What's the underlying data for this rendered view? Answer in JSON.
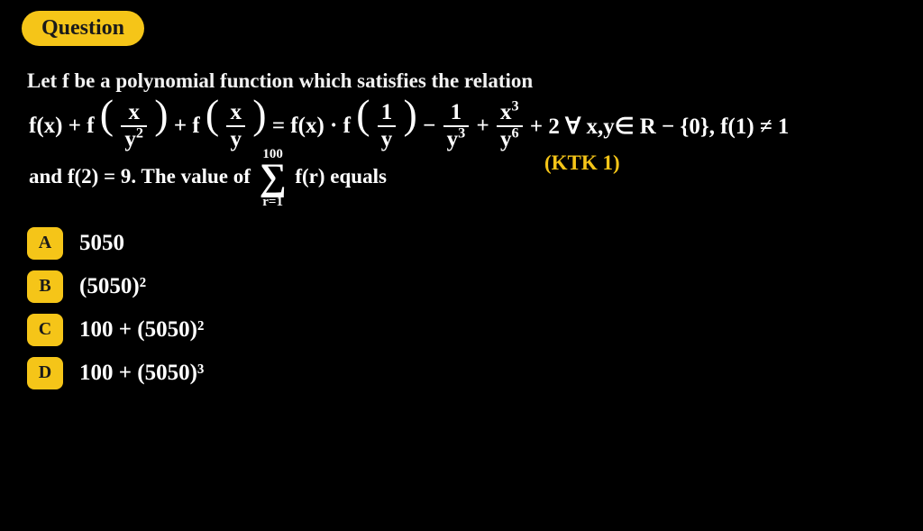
{
  "pill": {
    "label": "Question",
    "bg": "#f5c518",
    "fg": "#1a1a1a"
  },
  "prompt": "Let f be a polynomial function which satisfies the relation",
  "equation": {
    "lead": "f(x) + f",
    "f1_num": "x",
    "f1_den_base": "y",
    "f1_den_exp": "2",
    "plus1": " + f",
    "f2_num": "x",
    "f2_den": "y",
    "eq": " = f(x) · f",
    "f3_num": "1",
    "f3_den": "y",
    "minus": " − ",
    "t3_num": "1",
    "t3_den_base": "y",
    "t3_den_exp": "3",
    "plus2": " + ",
    "t4_num_base": "x",
    "t4_num_exp": "3",
    "t4_den_base": "y",
    "t4_den_exp": "6",
    "tail": " + 2 ∀ x,y∈ R − {0}, f(1) ≠ 1"
  },
  "ktk": "(KTK 1)",
  "second_line": {
    "pre": "and f(2) = 9. The value of ",
    "sum_top": "100",
    "sum_bot": "r=1",
    "sum_arg": "f(r) equals"
  },
  "options": [
    {
      "letter": "A",
      "value": "5050"
    },
    {
      "letter": "B",
      "value": "(5050)²"
    },
    {
      "letter": "C",
      "value": "100 + (5050)²"
    },
    {
      "letter": "D",
      "value": "100 + (5050)³"
    }
  ],
  "colors": {
    "bg": "#000000",
    "fg": "#ffffff",
    "accent": "#f5c518"
  }
}
